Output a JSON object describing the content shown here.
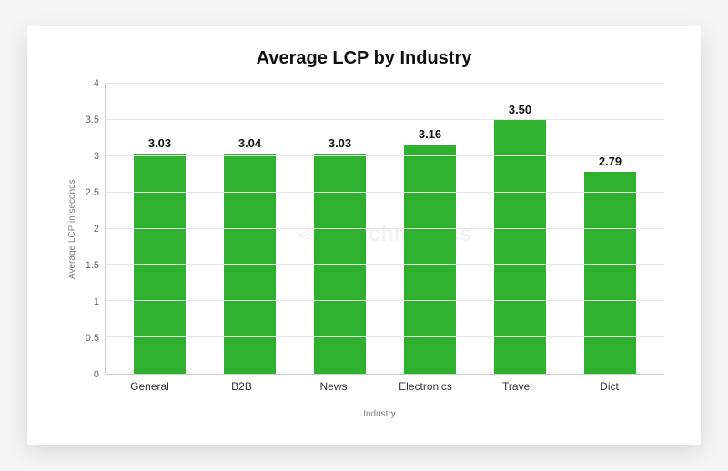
{
  "chart": {
    "type": "bar",
    "title": "Average LCP by Industry",
    "title_fontsize": 20,
    "title_fontweight": 700,
    "xlabel": "Industry",
    "ylabel": "Average LCP in seconds",
    "label_fontsize": 10,
    "label_color": "#808080",
    "categories": [
      "General",
      "B2B",
      "News",
      "Electronics",
      "Travel",
      "Dict"
    ],
    "values": [
      3.03,
      3.04,
      3.03,
      3.16,
      3.5,
      2.79
    ],
    "value_labels": [
      "3.03",
      "3.04",
      "3.03",
      "3.16",
      "3.50",
      "2.79"
    ],
    "bar_color": "#2fb02f",
    "bar_width": 0.58,
    "ylim": [
      0,
      4
    ],
    "ytick_step": 0.5,
    "yticks": [
      "0",
      "0.5",
      "1",
      "1.5",
      "2",
      "2.5",
      "3",
      "3.5",
      "4"
    ],
    "grid_color": "#e6e6e6",
    "axis_color": "#cccccc",
    "background_color": "#ffffff",
    "card_shadow": "0 8px 24px rgba(0,0,0,0.12)",
    "tick_fontsize": 11,
    "tick_color": "#666666",
    "xtick_fontsize": 12,
    "xtick_color": "#333333",
    "value_fontsize": 13,
    "value_fontweight": 700,
    "value_color": "#111111",
    "watermark_text": "searchmetrics",
    "watermark_color": "rgba(0,0,0,0.05)"
  }
}
